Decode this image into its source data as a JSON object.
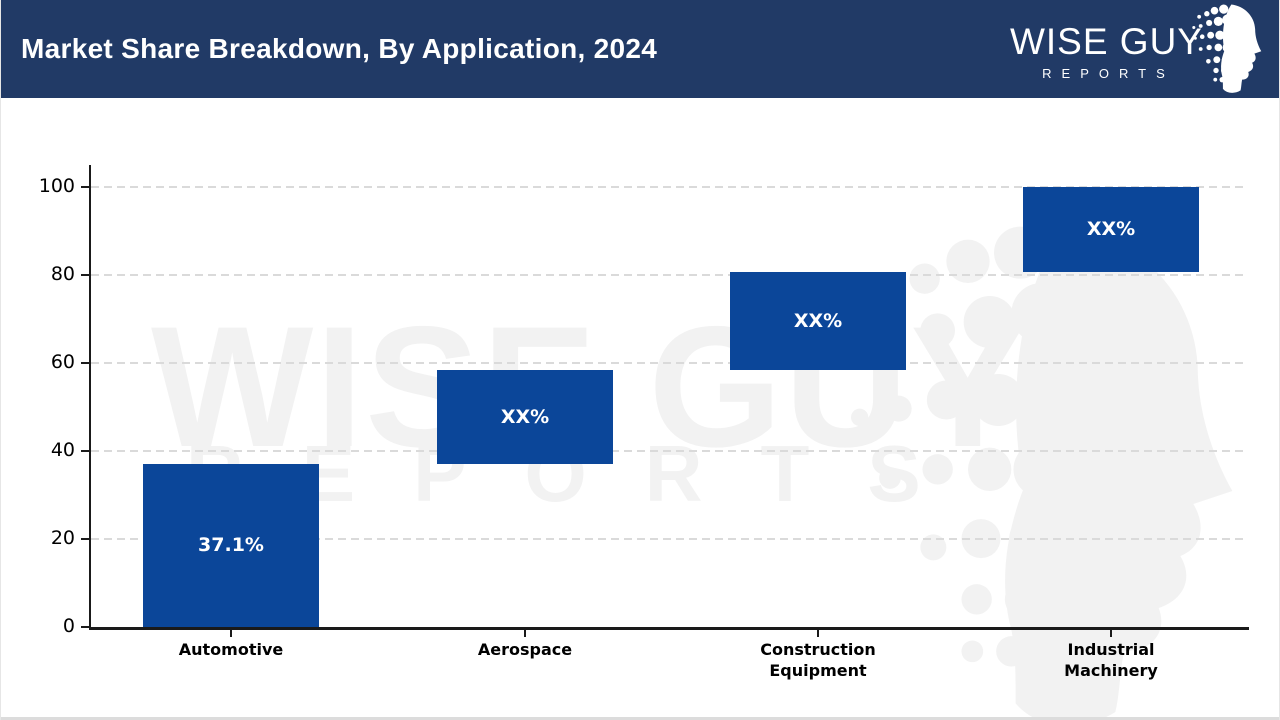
{
  "header": {
    "title": "Market Share Breakdown, By Application, 2024",
    "bg_color": "#213a66",
    "logo": {
      "line1": "WISE GUY",
      "line2": "REPORTS"
    }
  },
  "watermark": {
    "line1": "WISE GUY",
    "line2": "REPORTS"
  },
  "chart_data": {
    "type": "bar",
    "subtype": "waterfall",
    "title": "Market Share Breakdown, By Application, 2024",
    "categories": [
      [
        "Automotive"
      ],
      [
        "Aerospace"
      ],
      [
        "Construction",
        "Equipment"
      ],
      [
        "Industrial",
        "Machinery"
      ]
    ],
    "segments": [
      {
        "name": "Automotive",
        "start": 0,
        "end": 37.1,
        "label": "37.1%"
      },
      {
        "name": "Aerospace",
        "start": 37.1,
        "end": 58.4,
        "label": "XX%"
      },
      {
        "name": "Construction Equipment",
        "start": 58.4,
        "end": 80.7,
        "label": "XX%"
      },
      {
        "name": "Industrial Machinery",
        "start": 80.7,
        "end": 100,
        "label": "XX%"
      }
    ],
    "yticks": [
      0,
      20,
      40,
      60,
      80,
      100
    ],
    "ylim": [
      0,
      105
    ],
    "xlabel": "",
    "ylabel": "",
    "bar_color": "#0b4699",
    "value_label_color": "#ffffff",
    "grid": "horizontal-dashed",
    "gridline_color": "#dadada",
    "legend": "none"
  }
}
